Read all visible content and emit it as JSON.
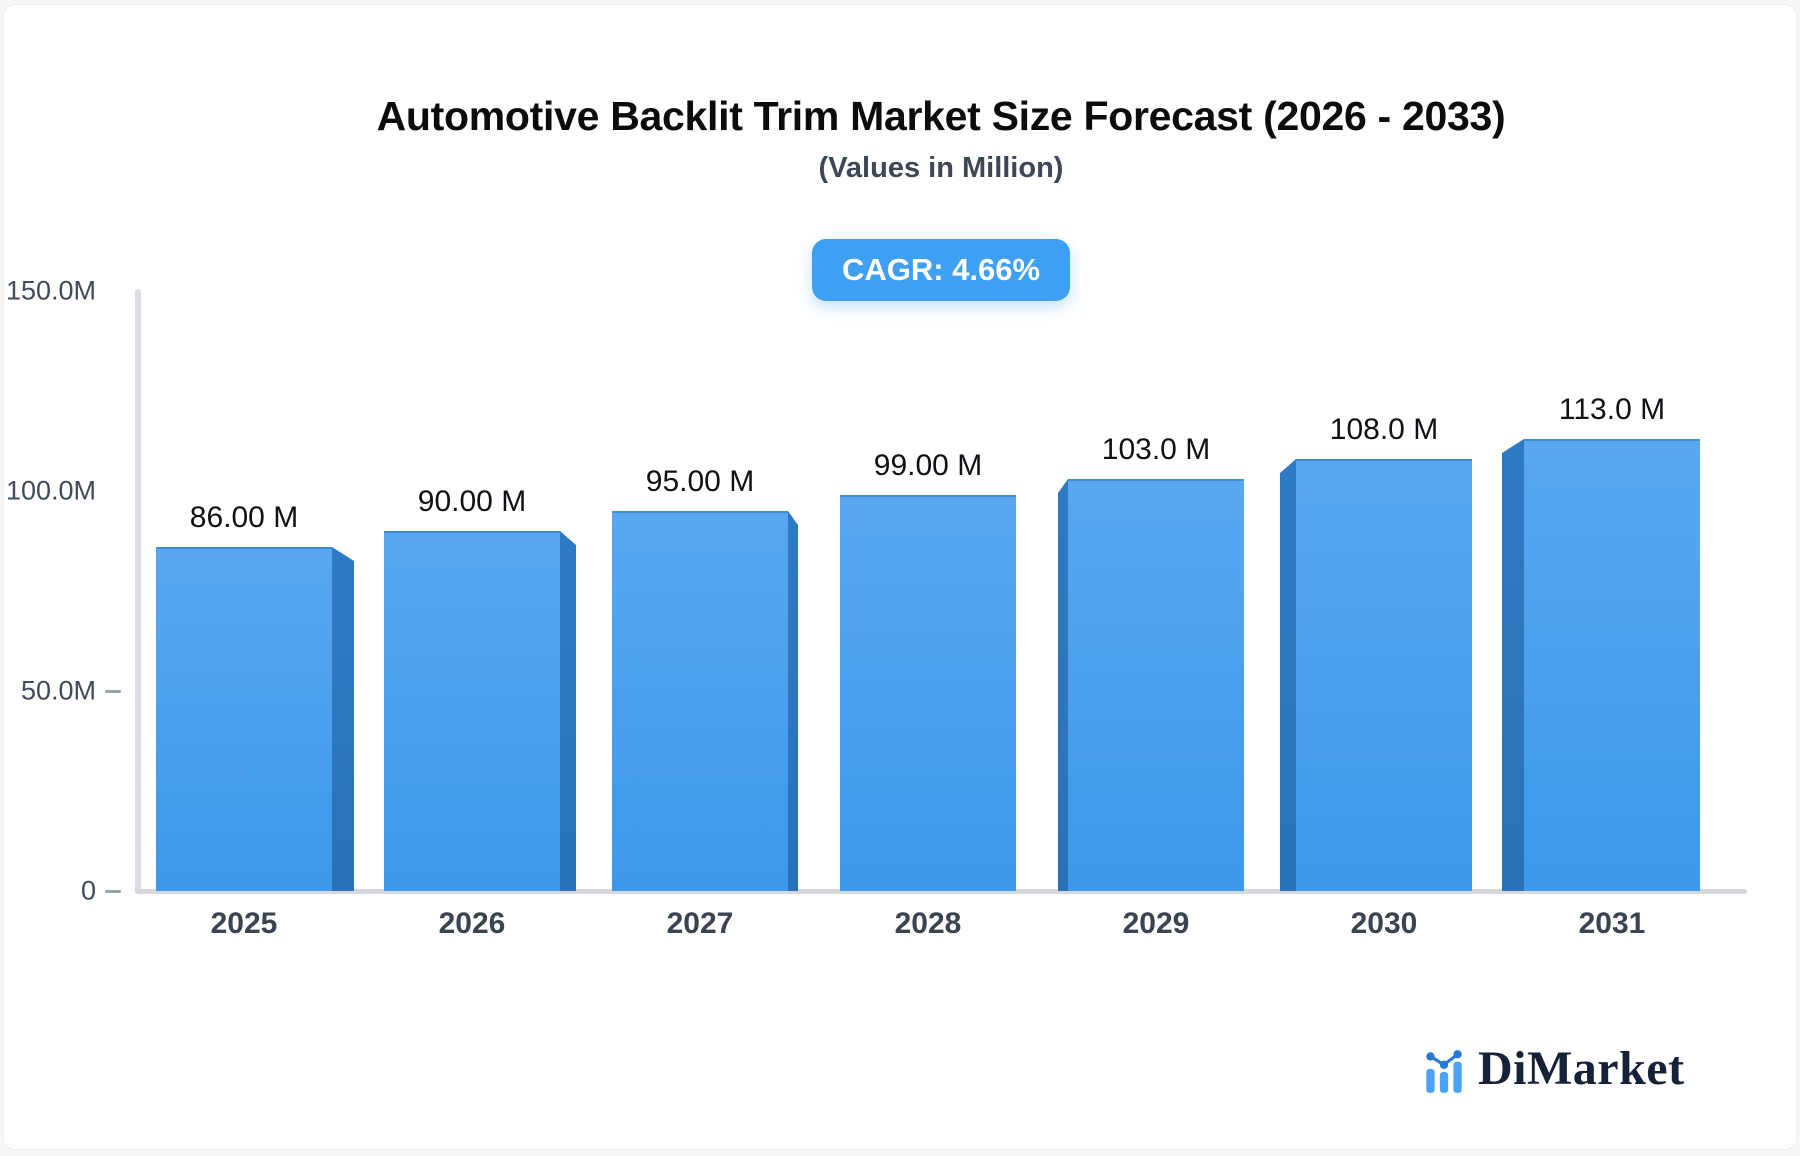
{
  "page": {
    "background_color": "#f6f7f9",
    "card_color": "#ffffff"
  },
  "header": {
    "title": "Automotive Backlit Trim Market Size Forecast (2026 - 2033)",
    "subtitle": "(Values in Million)",
    "cagr_badge": "CAGR: 4.66%",
    "badge_color": "#3ea0f2"
  },
  "chart_data": {
    "type": "bar",
    "title": "Automotive Backlit Trim Market Size Forecast (2026 - 2033)",
    "subtitle": "(Values in Million)",
    "xlabel": "",
    "ylabel": "",
    "unit": "Million",
    "categories": [
      "2025",
      "2026",
      "2027",
      "2028",
      "2029",
      "2030",
      "2031"
    ],
    "values": [
      86,
      90,
      95,
      99,
      103,
      108,
      113
    ],
    "value_labels": [
      "86.00 M",
      "90.00 M",
      "95.00 M",
      "99.00 M",
      "103.0 M",
      "108.0 M",
      "113.0 M"
    ],
    "ylim": [
      0,
      150
    ],
    "y_ticks": [
      {
        "label": "150.0M",
        "value": 150,
        "dash": false
      },
      {
        "label": "100.0M",
        "value": 100,
        "dash": false
      },
      {
        "label": "50.0M",
        "value": 50,
        "dash": true
      },
      {
        "label": "0",
        "value": 0,
        "dash": true
      }
    ],
    "grid": false,
    "legend": false,
    "bar_style": "3d-perspective",
    "bar_face_color_top": "#58a8f0",
    "bar_face_color_bottom": "#3d98ec",
    "bar_side_color": "#2e7ac3"
  },
  "footer": {
    "brand_name": "DiMarket",
    "logo_icon": "mini-bar-chart-icon",
    "logo_bar_color": "#4ba3f5",
    "logo_line_color": "#2878d8"
  }
}
